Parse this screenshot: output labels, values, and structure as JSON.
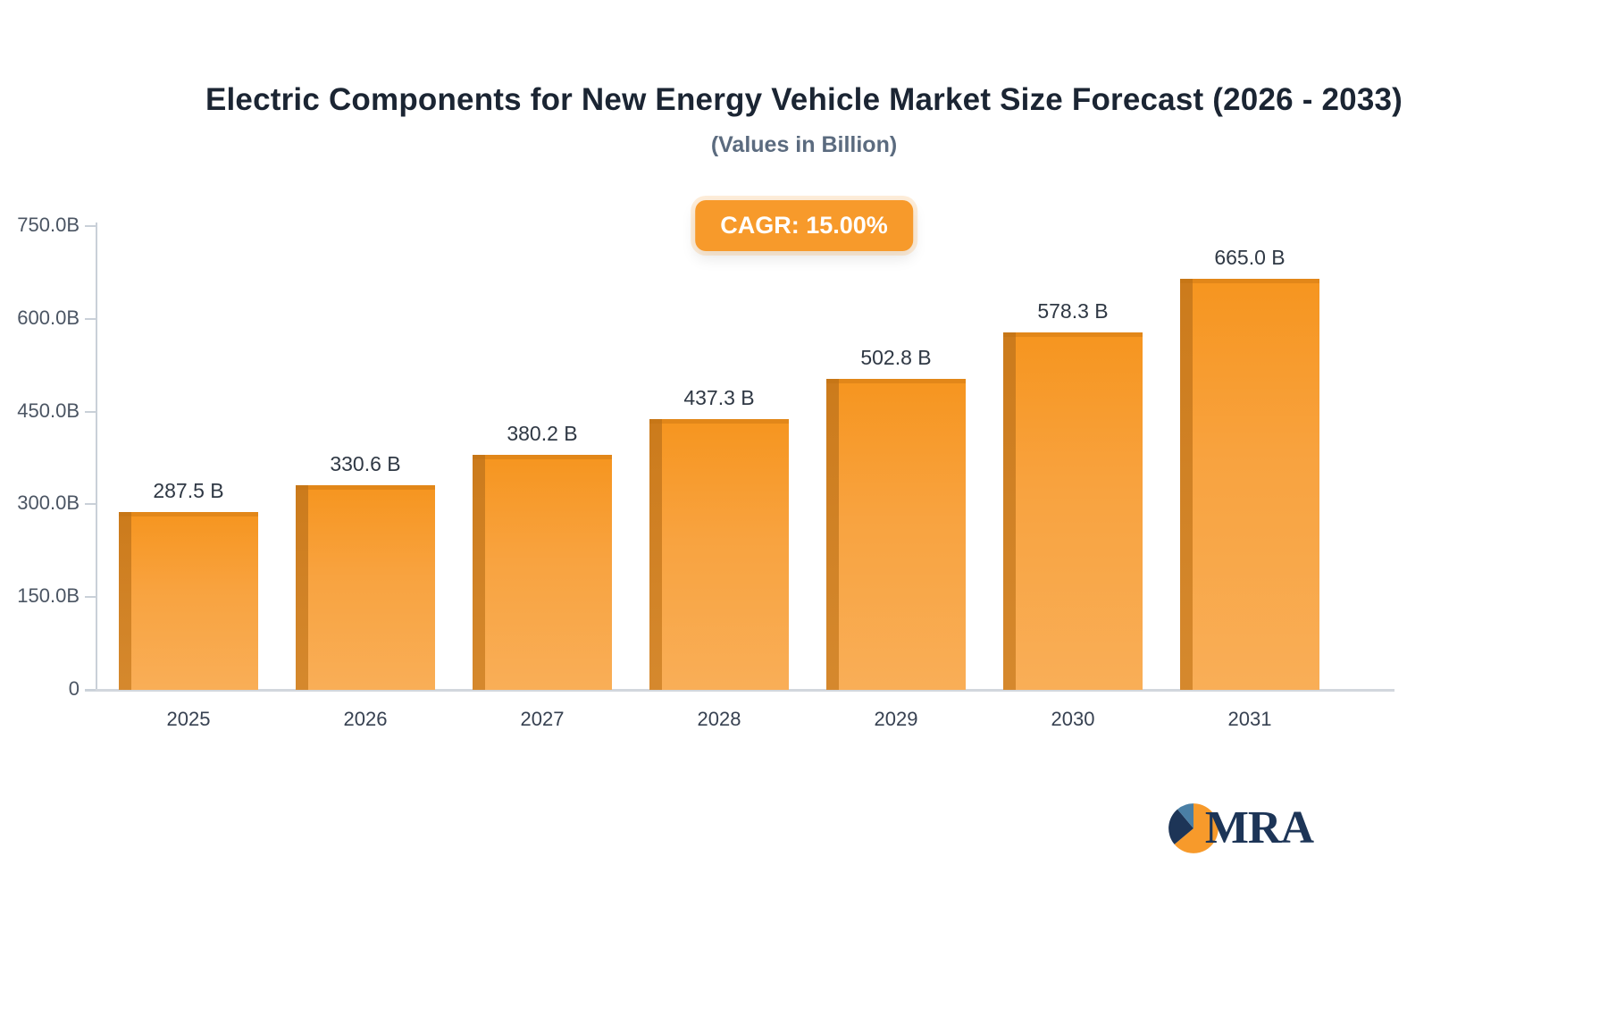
{
  "title": "Electric Components for New Energy Vehicle Market Size Forecast (2026 - 2033)",
  "subtitle": "(Values in Billion)",
  "cagr_label": "CAGR: 15.00%",
  "logo_text": "MRA",
  "chart_data": {
    "type": "bar",
    "title": "Electric Components for New Energy Vehicle Market Size Forecast (2026 - 2033)",
    "subtitle": "(Values in Billion)",
    "cagr": "15.00%",
    "categories": [
      "2025",
      "2026",
      "2027",
      "2028",
      "2029",
      "2030",
      "2031"
    ],
    "values": [
      287.5,
      330.6,
      380.2,
      437.3,
      502.8,
      578.3,
      665.0
    ],
    "value_labels": [
      "287.5 B",
      "330.6 B",
      "380.2 B",
      "437.3 B",
      "502.8 B",
      "578.3 B",
      "665.0 B"
    ],
    "xlabel": "",
    "ylabel": "",
    "ylim": [
      0,
      750
    ],
    "yticks": [
      {
        "label": "750.0B",
        "value": 750
      },
      {
        "label": "600.0B",
        "value": 600
      },
      {
        "label": "450.0B",
        "value": 450
      },
      {
        "label": "300.0B",
        "value": 300
      },
      {
        "label": "150.0B",
        "value": 150
      },
      {
        "label": "0",
        "value": 0
      }
    ],
    "grid": false,
    "legend": "none",
    "bar_color_top": "#f6951f",
    "bar_color_bottom": "#f9ae57",
    "bar_edge_color": "#c97a1e",
    "accent_color": "#f79a2b"
  }
}
